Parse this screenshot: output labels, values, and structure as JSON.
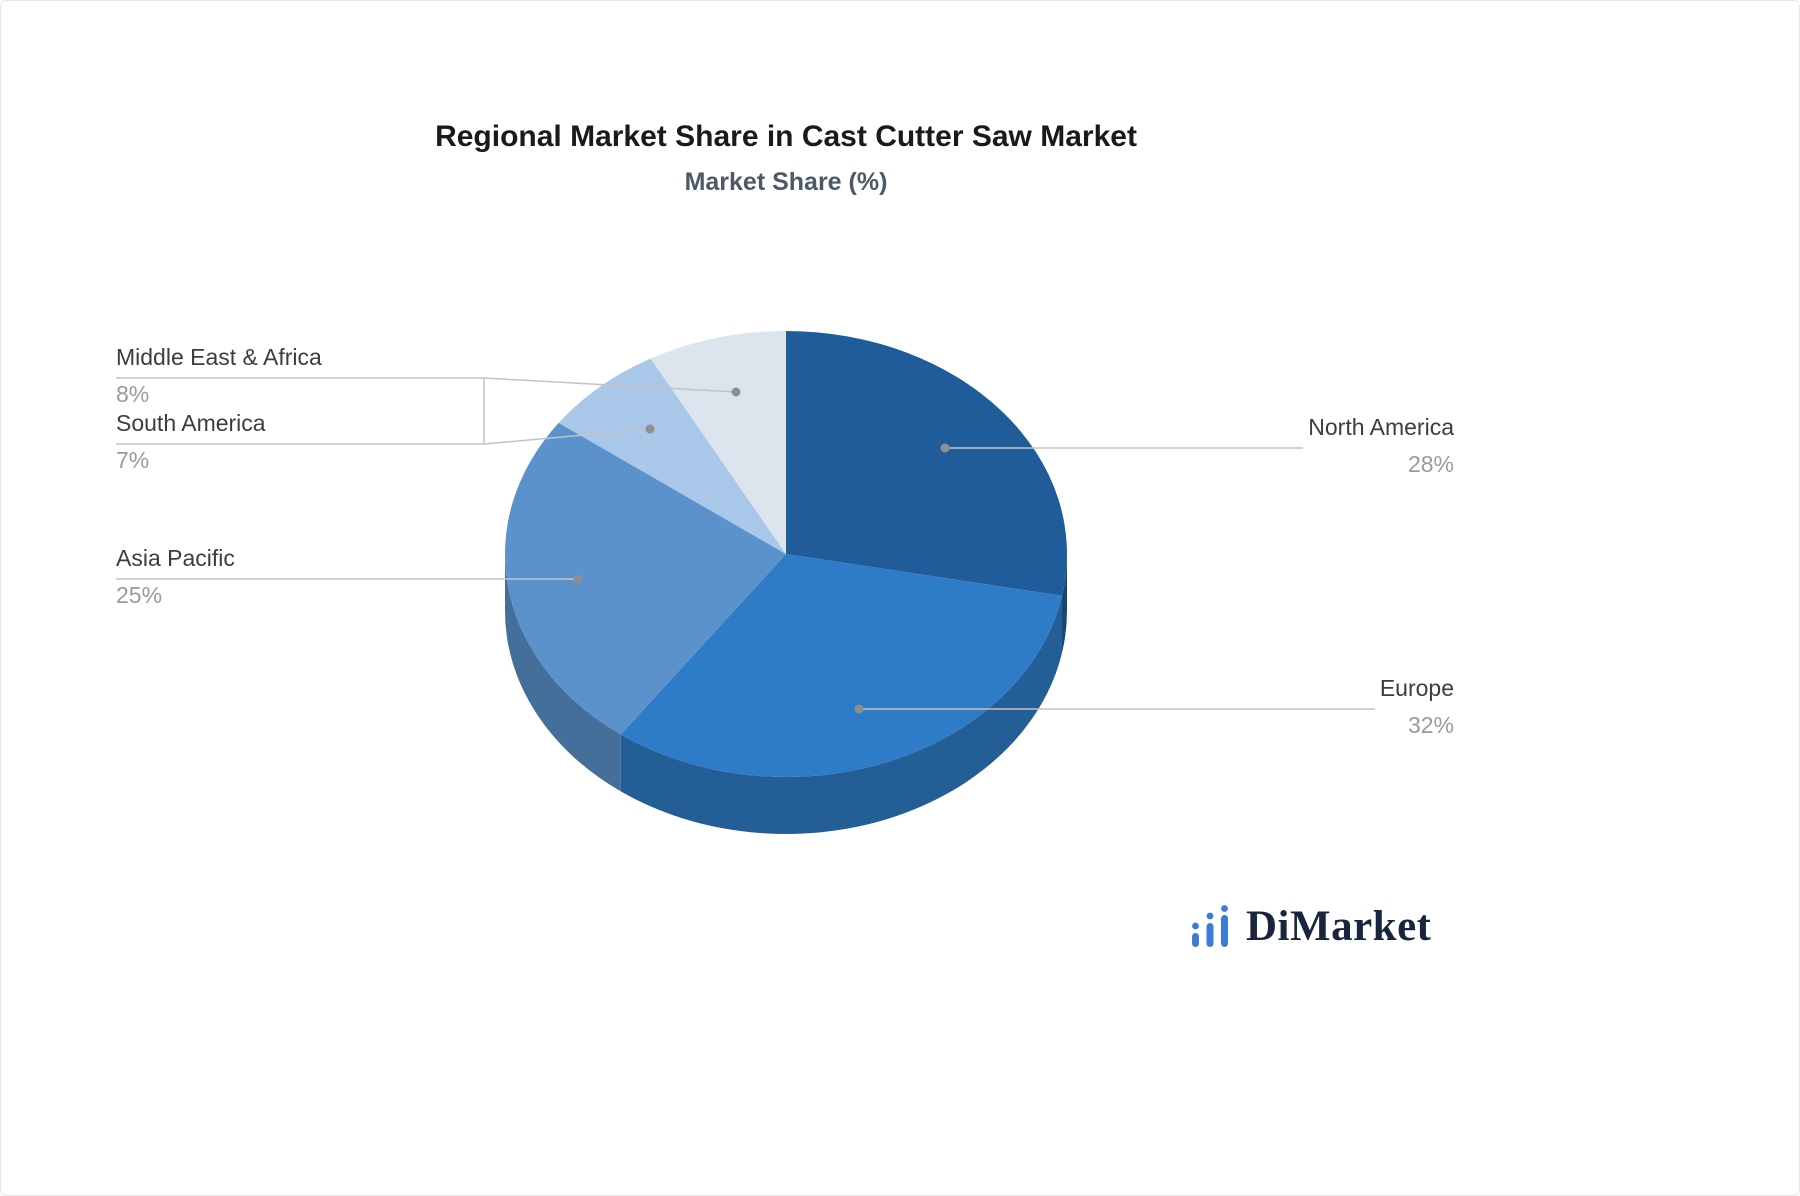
{
  "chart_data": {
    "type": "pie",
    "title": "Regional Market Share in Cast Cutter Saw Market",
    "subtitle": "Market Share (%)",
    "unit": "%",
    "direction": "clockwise",
    "start_angle_deg": 0,
    "style_3d": true,
    "legend_position": "callout-labels",
    "slices": [
      {
        "label": "North America",
        "value": 28,
        "display": "28%",
        "color": "#1f5c99"
      },
      {
        "label": "Europe",
        "value": 32,
        "display": "32%",
        "color": "#2e7cc7"
      },
      {
        "label": "Asia Pacific",
        "value": 25,
        "display": "25%",
        "color": "#5b92cc"
      },
      {
        "label": "South America",
        "value": 7,
        "display": "7%",
        "color": "#a9c7e8"
      },
      {
        "label": "Middle East & Africa",
        "value": 8,
        "display": "8%",
        "color": "#dce4ee"
      }
    ],
    "leader_line_color": "#c3c3c3",
    "leader_dot_color": "#8f8f8f",
    "label_text_color": "#3d3d3d",
    "label_value_color": "#9b9b9b"
  },
  "branding": {
    "logo_text": "DiMarket",
    "logo_icon": "bar-chart-icon",
    "icon_color": "#3c7bd9",
    "text_color": "#17263e"
  }
}
